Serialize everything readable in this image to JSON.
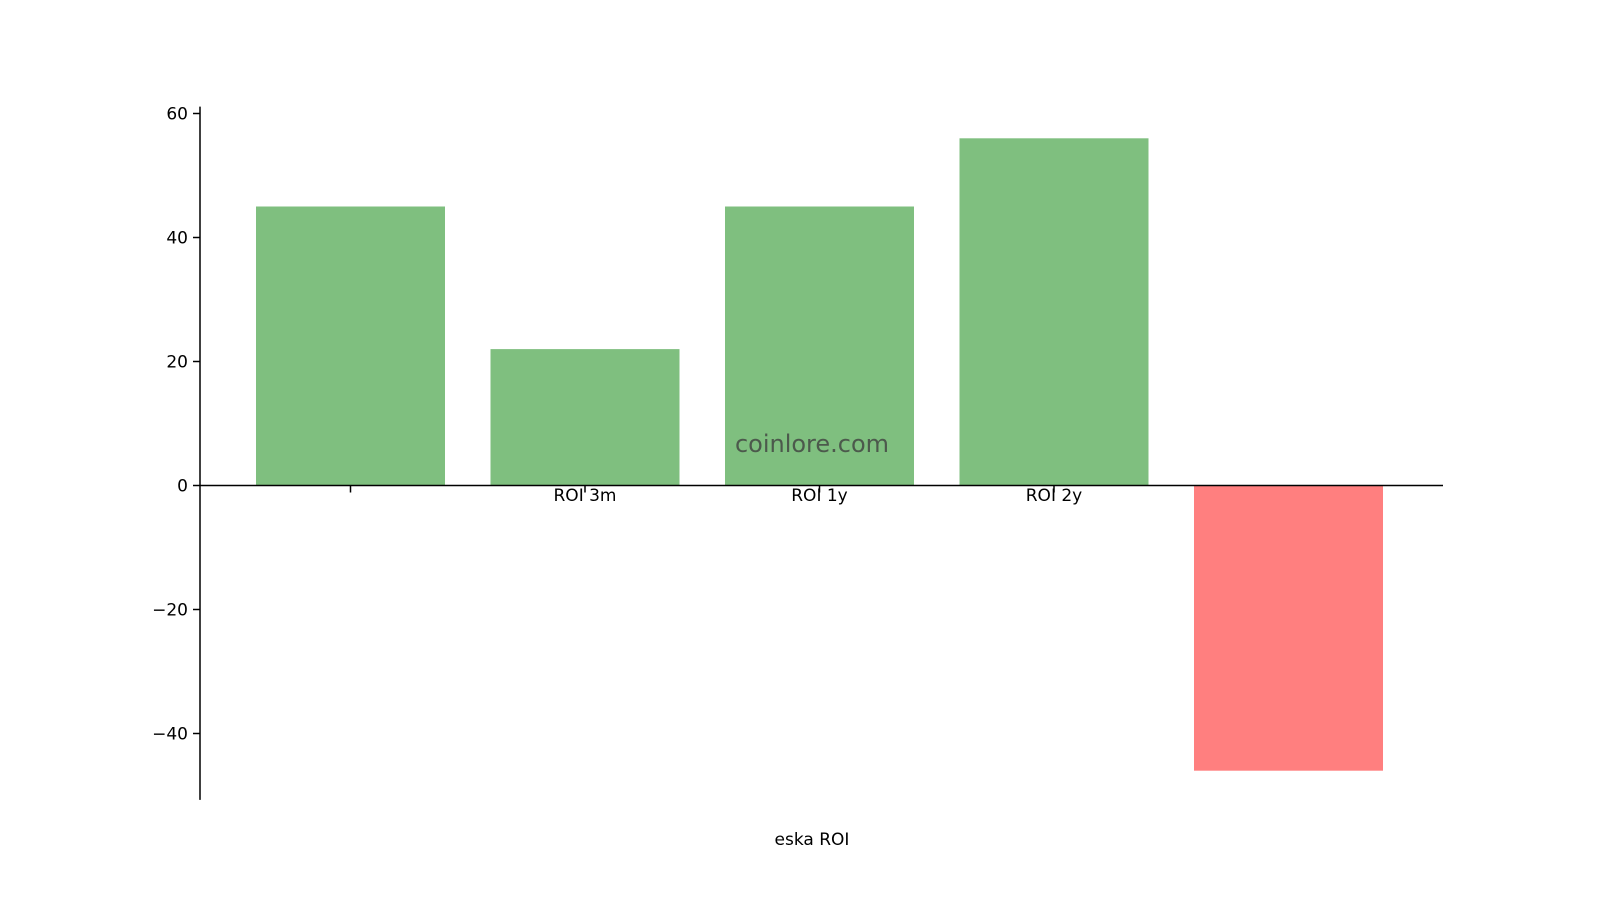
{
  "chart_data": {
    "type": "bar",
    "categories": [
      "",
      "ROI 3m",
      "ROI 1y",
      "ROI 2y",
      ""
    ],
    "values": [
      45,
      22,
      45,
      56,
      -46
    ],
    "bar_colors": [
      "#7fbf7f",
      "#7fbf7f",
      "#7fbf7f",
      "#7fbf7f",
      "#ff7f7f"
    ],
    "positive_color": "#7fbf7f",
    "negative_color": "#ff7f7f",
    "title": "",
    "xlabel": "eska ROI",
    "ylabel": "",
    "ylim": [
      -50.7,
      61.1
    ],
    "yticks": [
      60,
      40,
      20,
      0,
      -20,
      -40
    ],
    "ytick_labels": [
      "60",
      "40",
      "20",
      "0",
      "−20",
      "−40"
    ],
    "x_ticks_shown": [
      true,
      true,
      true,
      true,
      false
    ],
    "grid": false,
    "legend": null,
    "watermark": "coinlore.com",
    "axis_color": "#000000",
    "background_color": "#ffffff"
  }
}
